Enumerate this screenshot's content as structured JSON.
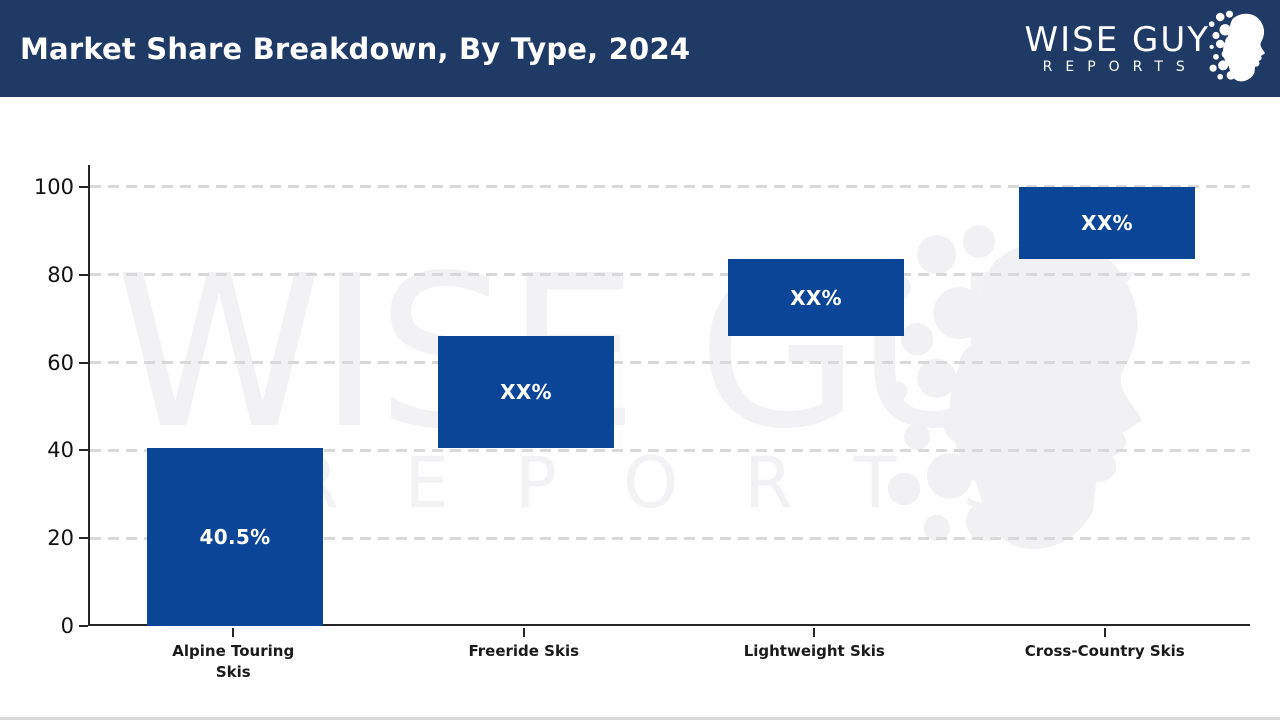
{
  "header": {
    "title": "Market Share Breakdown, By Type, 2024",
    "logo": {
      "line1": "WISE GUY",
      "line2": "REPORTS"
    }
  },
  "watermark": {
    "line1": "WISE GUY",
    "line2": "REPORTS"
  },
  "chart_data": {
    "type": "bar",
    "subtype": "waterfall-floating-bars",
    "title": "Market Share Breakdown, By Type, 2024",
    "xlabel": "",
    "ylabel": "",
    "categories": [
      "Alpine Touring\nSkis",
      "Freeride Skis",
      "Lightweight Skis",
      "Cross-Country Skis"
    ],
    "segments": [
      {
        "category": "Alpine Touring Skis",
        "start": 0,
        "end": 40.5,
        "label": "40.5%"
      },
      {
        "category": "Freeride Skis",
        "start": 40.5,
        "end": 66,
        "label": "XX%"
      },
      {
        "category": "Lightweight Skis",
        "start": 66,
        "end": 83.5,
        "label": "XX%"
      },
      {
        "category": "Cross-Country Skis",
        "start": 83.5,
        "end": 100,
        "label": "XX%"
      }
    ],
    "yticks": [
      0,
      20,
      40,
      60,
      80,
      100
    ],
    "ylim": [
      0,
      105
    ],
    "grid": "horizontal-dashed",
    "legend": "none",
    "colors": {
      "bar": "#0b4597",
      "bar_label": "#ffffff",
      "axis": "#262626",
      "grid": "#d9d9d9",
      "header_bg": "#203a66",
      "header_text": "#ffffff",
      "watermark": "#f2f2f4"
    }
  }
}
